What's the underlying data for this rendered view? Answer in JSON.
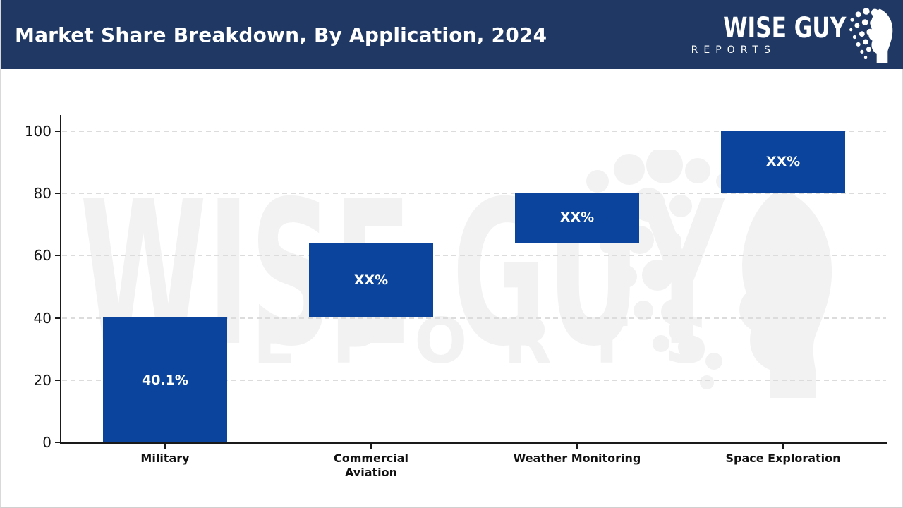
{
  "header": {
    "logo": {
      "line1": "WISE GUY",
      "line2": "REPORTS"
    }
  },
  "watermark": {
    "line1": "WISE GUY",
    "line2": "REPORTS"
  },
  "colors": {
    "header_bg": "#1f3864",
    "bar_blue": "#0a449c",
    "grid_gray": "#dcdcdc",
    "axis_black": "#1a1a1a",
    "watermark_gray": "#f2f2f2",
    "title_text": "#ffffff",
    "bar_value_text": "#ffffff"
  },
  "chart_data": {
    "type": "bar",
    "variant": "waterfall-floating-bars",
    "title": "Market Share Breakdown, By Application, 2024",
    "categories": [
      "Military",
      "Commercial Aviation",
      "Weather Monitoring",
      "Space Exploration"
    ],
    "category_label_lines": [
      [
        "Military"
      ],
      [
        "Commercial",
        "Aviation"
      ],
      [
        "Weather Monitoring"
      ],
      [
        "Space Exploration"
      ]
    ],
    "bars": [
      {
        "category": "Military",
        "base": 0,
        "top": 40.1,
        "label": "40.1%"
      },
      {
        "category": "Commercial Aviation",
        "base": 40.1,
        "top": 64.2,
        "label": "XX%"
      },
      {
        "category": "Weather Monitoring",
        "base": 64.2,
        "top": 80.3,
        "label": "XX%"
      },
      {
        "category": "Space Exploration",
        "base": 80.3,
        "top": 100,
        "label": "XX%"
      }
    ],
    "yticks": [
      0,
      20,
      40,
      60,
      80,
      100
    ],
    "ylim": [
      0,
      105
    ],
    "xlabel": "",
    "ylabel": "",
    "grid": "horizontal-dashed",
    "legend": "none",
    "bar_color": "#0a449c",
    "value_label_color": "#ffffff"
  }
}
